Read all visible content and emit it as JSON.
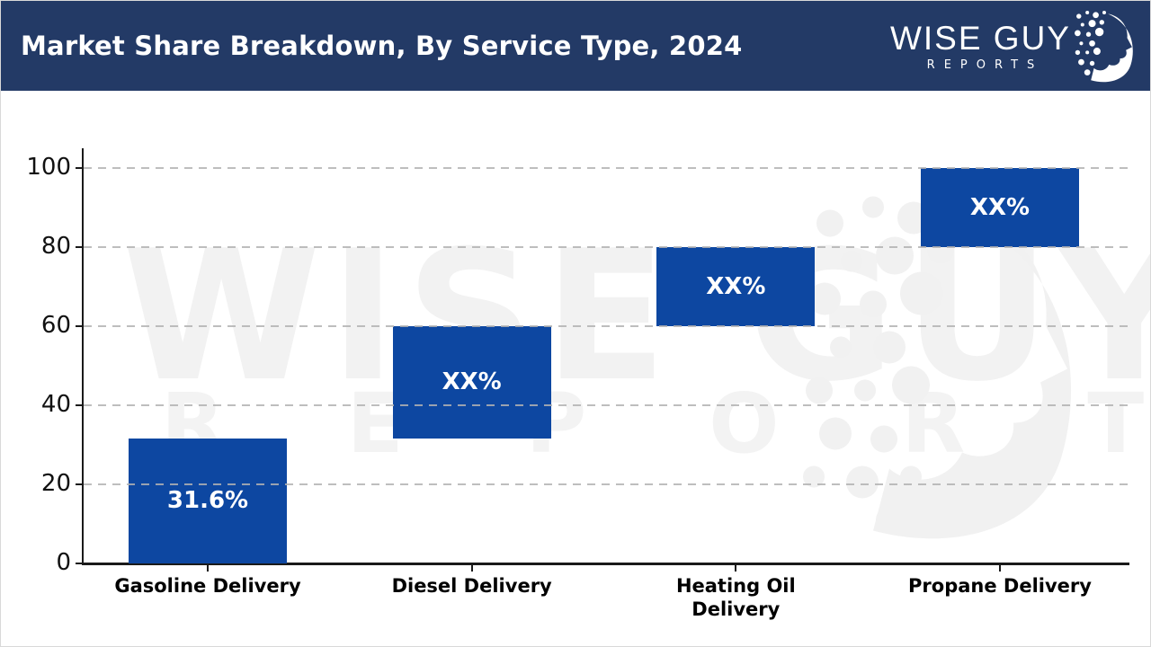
{
  "header": {
    "title": "Market Share Breakdown, By Service Type, 2024",
    "bg_color": "#233a66",
    "logo": {
      "name": "WISE GUY",
      "sub": "REPORTS"
    }
  },
  "chart_data": {
    "type": "bar",
    "variant": "waterfall",
    "title": "Market Share Breakdown, By Service Type, 2024",
    "categories": [
      "Gasoline Delivery",
      "Diesel Delivery",
      "Heating Oil\nDelivery",
      "Propane Delivery"
    ],
    "segments": [
      {
        "category": "Gasoline Delivery",
        "start": 0,
        "end": 31.6,
        "value": 31.6,
        "label": "31.6%"
      },
      {
        "category": "Diesel Delivery",
        "start": 31.6,
        "end": 60,
        "value": 28.4,
        "label": "XX%"
      },
      {
        "category": "Heating Oil Delivery",
        "start": 60,
        "end": 80,
        "value": 20,
        "label": "XX%"
      },
      {
        "category": "Propane Delivery",
        "start": 80,
        "end": 100,
        "value": 20,
        "label": "XX%"
      }
    ],
    "yticks": [
      0,
      20,
      40,
      60,
      80,
      100
    ],
    "ylim": [
      0,
      105
    ],
    "xlabel": "",
    "ylabel": "",
    "legend": "none",
    "grid": {
      "axis": "y",
      "style": "dashed",
      "color": "#bbbbbb",
      "over_bars": true
    },
    "bar_color": "#0d47a1",
    "bar_label_color": "#ffffff",
    "axis_color": "#1a1a1a"
  },
  "watermark": {
    "line1": "WISE GUY",
    "line2": "R E P O R T S"
  }
}
